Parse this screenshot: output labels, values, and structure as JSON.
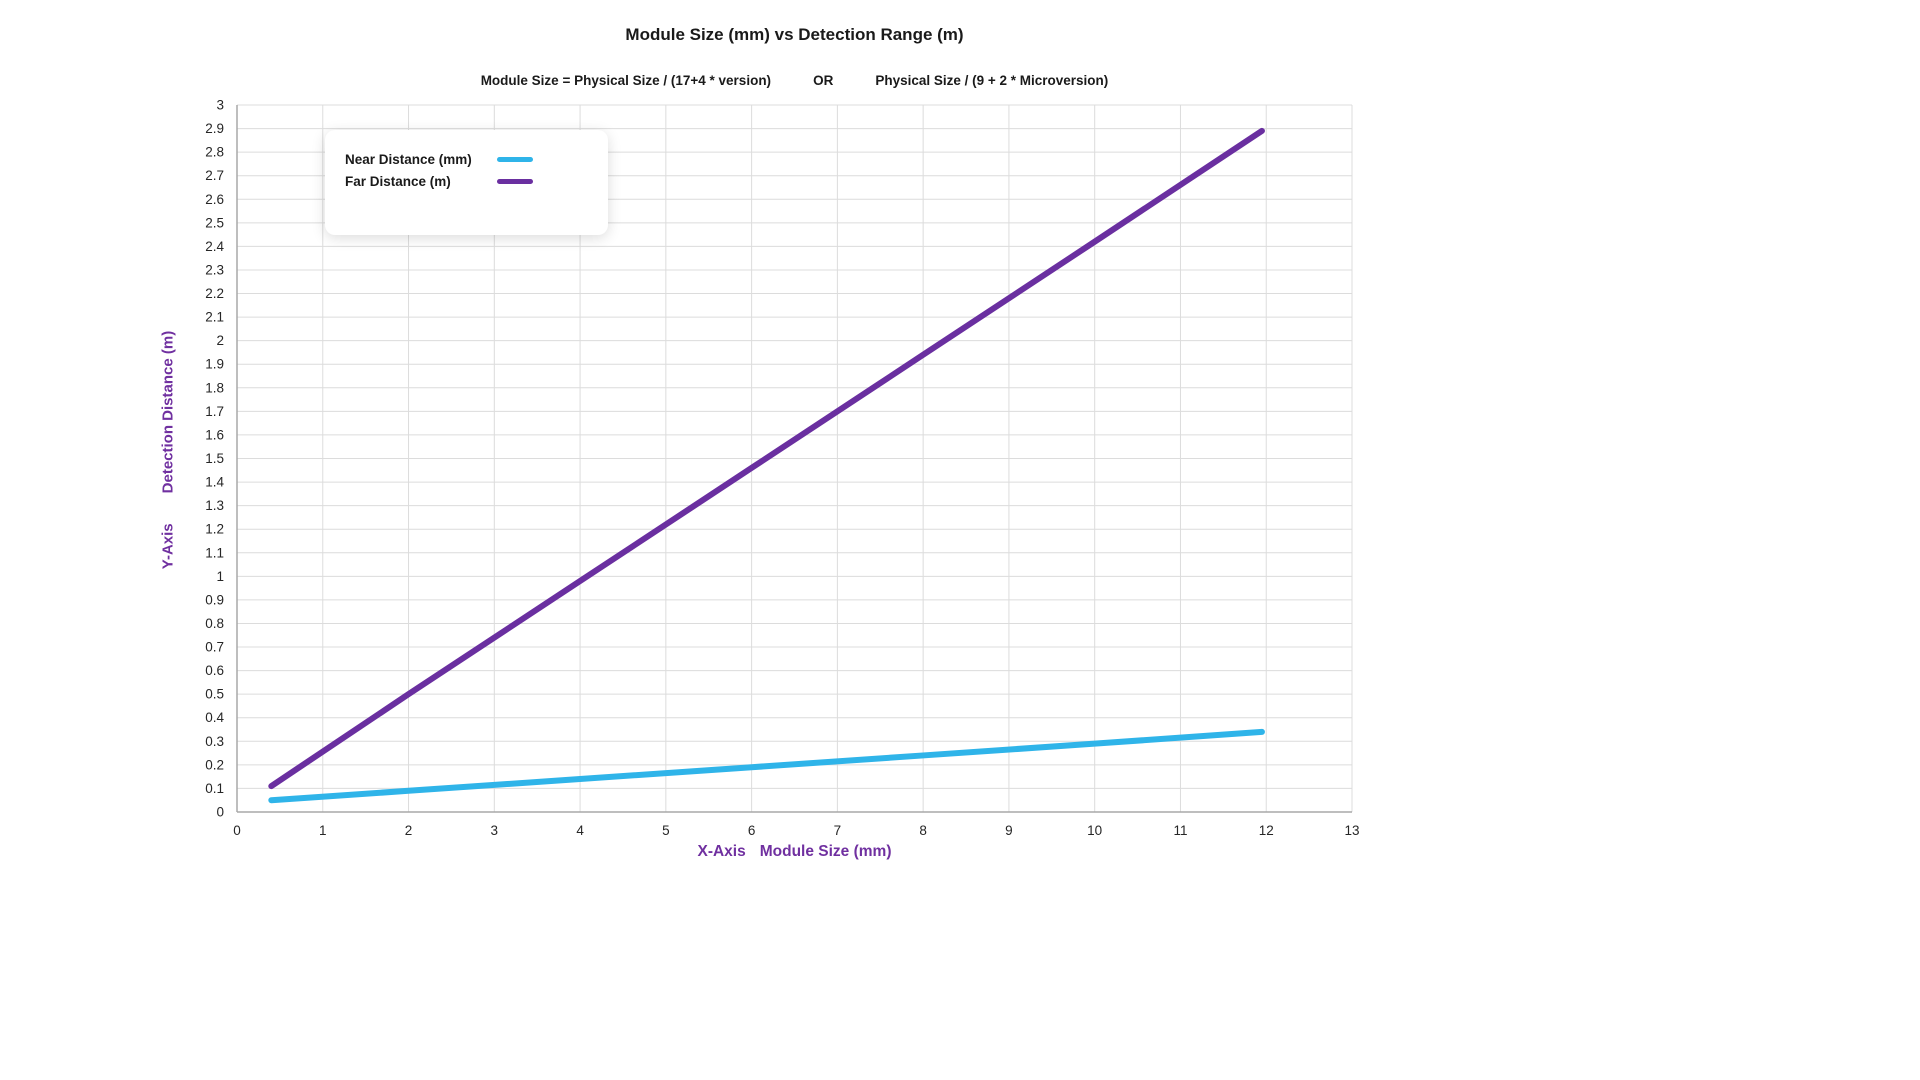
{
  "header": {
    "title": "Module Size (mm) vs Detection Range (m)",
    "subtitle_parts": {
      "formula_left": "Module Size = Physical Size / (17+4 * version)",
      "or": "OR",
      "formula_right": "Physical Size / (9 + 2 * Microversion)"
    }
  },
  "chart_data": {
    "type": "line",
    "title": "Module Size (mm) vs Detection Range (m)",
    "subtitle": "Module Size = Physical Size / (17+4 * version)   OR   Physical Size / (9 + 2 * Microversion)",
    "xlabel_prefix": "X-Axis",
    "xlabel": "Module Size (mm)",
    "ylabel_prefix": "Y-Axis",
    "ylabel": "Detection Distance (m)",
    "xlim": [
      0,
      13
    ],
    "ylim": [
      0,
      3
    ],
    "x_ticks": [
      "0",
      "1",
      "2",
      "3",
      "4",
      "5",
      "6",
      "7",
      "8",
      "9",
      "10",
      "11",
      "12",
      "13"
    ],
    "y_ticks": [
      "0",
      "0.1",
      "0.2",
      "0.3",
      "0.4",
      "0.5",
      "0.6",
      "0.7",
      "0.8",
      "0.9",
      "1",
      "1.1",
      "1.2",
      "1.3",
      "1.4",
      "1.5",
      "1.6",
      "1.7",
      "1.8",
      "1.9",
      "2",
      "2.1",
      "2.2",
      "2.3",
      "2.4",
      "2.5",
      "2.6",
      "2.7",
      "2.8",
      "2.9",
      "3"
    ],
    "grid": true,
    "legend_position": "top-left",
    "series": [
      {
        "name": "Near Distance (mm)",
        "color": "#2fb4e9",
        "points": [
          [
            0.4,
            0.05
          ],
          [
            2,
            0.09
          ],
          [
            4,
            0.14
          ],
          [
            6,
            0.19
          ],
          [
            8,
            0.24
          ],
          [
            10,
            0.29
          ],
          [
            11.95,
            0.34
          ]
        ]
      },
      {
        "name": "Far Distance (m)",
        "color": "#6a2fa0",
        "points": [
          [
            0.4,
            0.11
          ],
          [
            2,
            0.5
          ],
          [
            4,
            0.98
          ],
          [
            6,
            1.46
          ],
          [
            8,
            1.94
          ],
          [
            10,
            2.42
          ],
          [
            11.95,
            2.89
          ]
        ]
      }
    ],
    "colors": {
      "grid": "#dcdcdc",
      "axis": "#a8a8a8",
      "tick_label": "#262626",
      "axis_title": "#7030a0"
    }
  }
}
